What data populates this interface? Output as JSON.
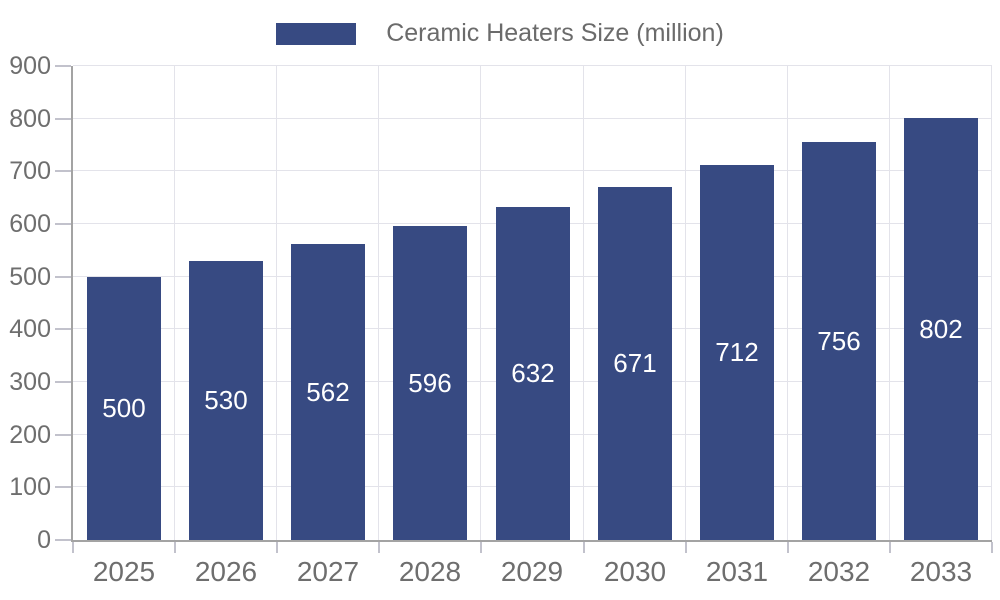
{
  "legend": {
    "label": "Ceramic Heaters Size (million)"
  },
  "chart_data": {
    "type": "bar",
    "title": "",
    "categories": [
      "2025",
      "2026",
      "2027",
      "2028",
      "2029",
      "2030",
      "2031",
      "2032",
      "2033"
    ],
    "series": [
      {
        "name": "Ceramic Heaters Size (million)",
        "values": [
          500,
          530,
          562,
          596,
          632,
          671,
          712,
          756,
          802
        ]
      }
    ],
    "ylim": [
      0,
      900
    ],
    "yticks": [
      0,
      100,
      200,
      300,
      400,
      500,
      600,
      700,
      800,
      900
    ],
    "grid": "both",
    "legend_position": "top-center",
    "value_labels_position": "inside-center",
    "colors": {
      "bar": "#374a82",
      "grid": "#e3e3ea",
      "axis_border": "#a3a3a3",
      "tick_mark": "#c2c2cc",
      "tick_text": "#6e6e6e",
      "legend_text": "#6b6b6b",
      "value_label_text": "#ffffff",
      "background": "#ffffff"
    }
  }
}
